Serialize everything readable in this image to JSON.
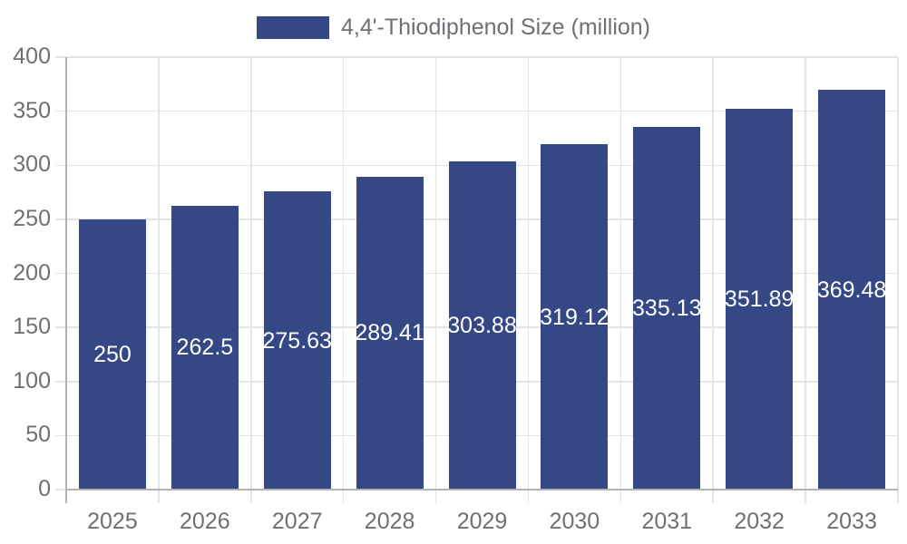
{
  "legend": {
    "label": "4,4'-Thiodiphenol Size (million)"
  },
  "chart_data": {
    "type": "bar",
    "title": "",
    "categories": [
      "2025",
      "2026",
      "2027",
      "2028",
      "2029",
      "2030",
      "2031",
      "2032",
      "2033"
    ],
    "values": [
      250,
      262.5,
      275.63,
      289.41,
      303.88,
      319.12,
      335.13,
      351.89,
      369.48
    ],
    "bar_labels": [
      "250",
      "262.5",
      "275.63",
      "289.41",
      "303.88",
      "319.12",
      "335.13",
      "351.89",
      "369.48"
    ],
    "series_name": "4,4'-Thiodiphenol Size (million)",
    "xlabel": "",
    "ylabel": "",
    "ylim": [
      0,
      400
    ],
    "yticks": [
      0,
      50,
      100,
      150,
      200,
      250,
      300,
      350,
      400
    ],
    "grid": true,
    "legend_position": "top-center",
    "bar_label_position": "middle-of-bar",
    "colors": {
      "bar": "#354885",
      "grid": "#e4e4e4",
      "axis": "#b3b3b3",
      "tick_text": "#6d7074",
      "legend_text": "#6d7074",
      "bar_label_text": "#ffffff",
      "background": "#ffffff"
    }
  }
}
